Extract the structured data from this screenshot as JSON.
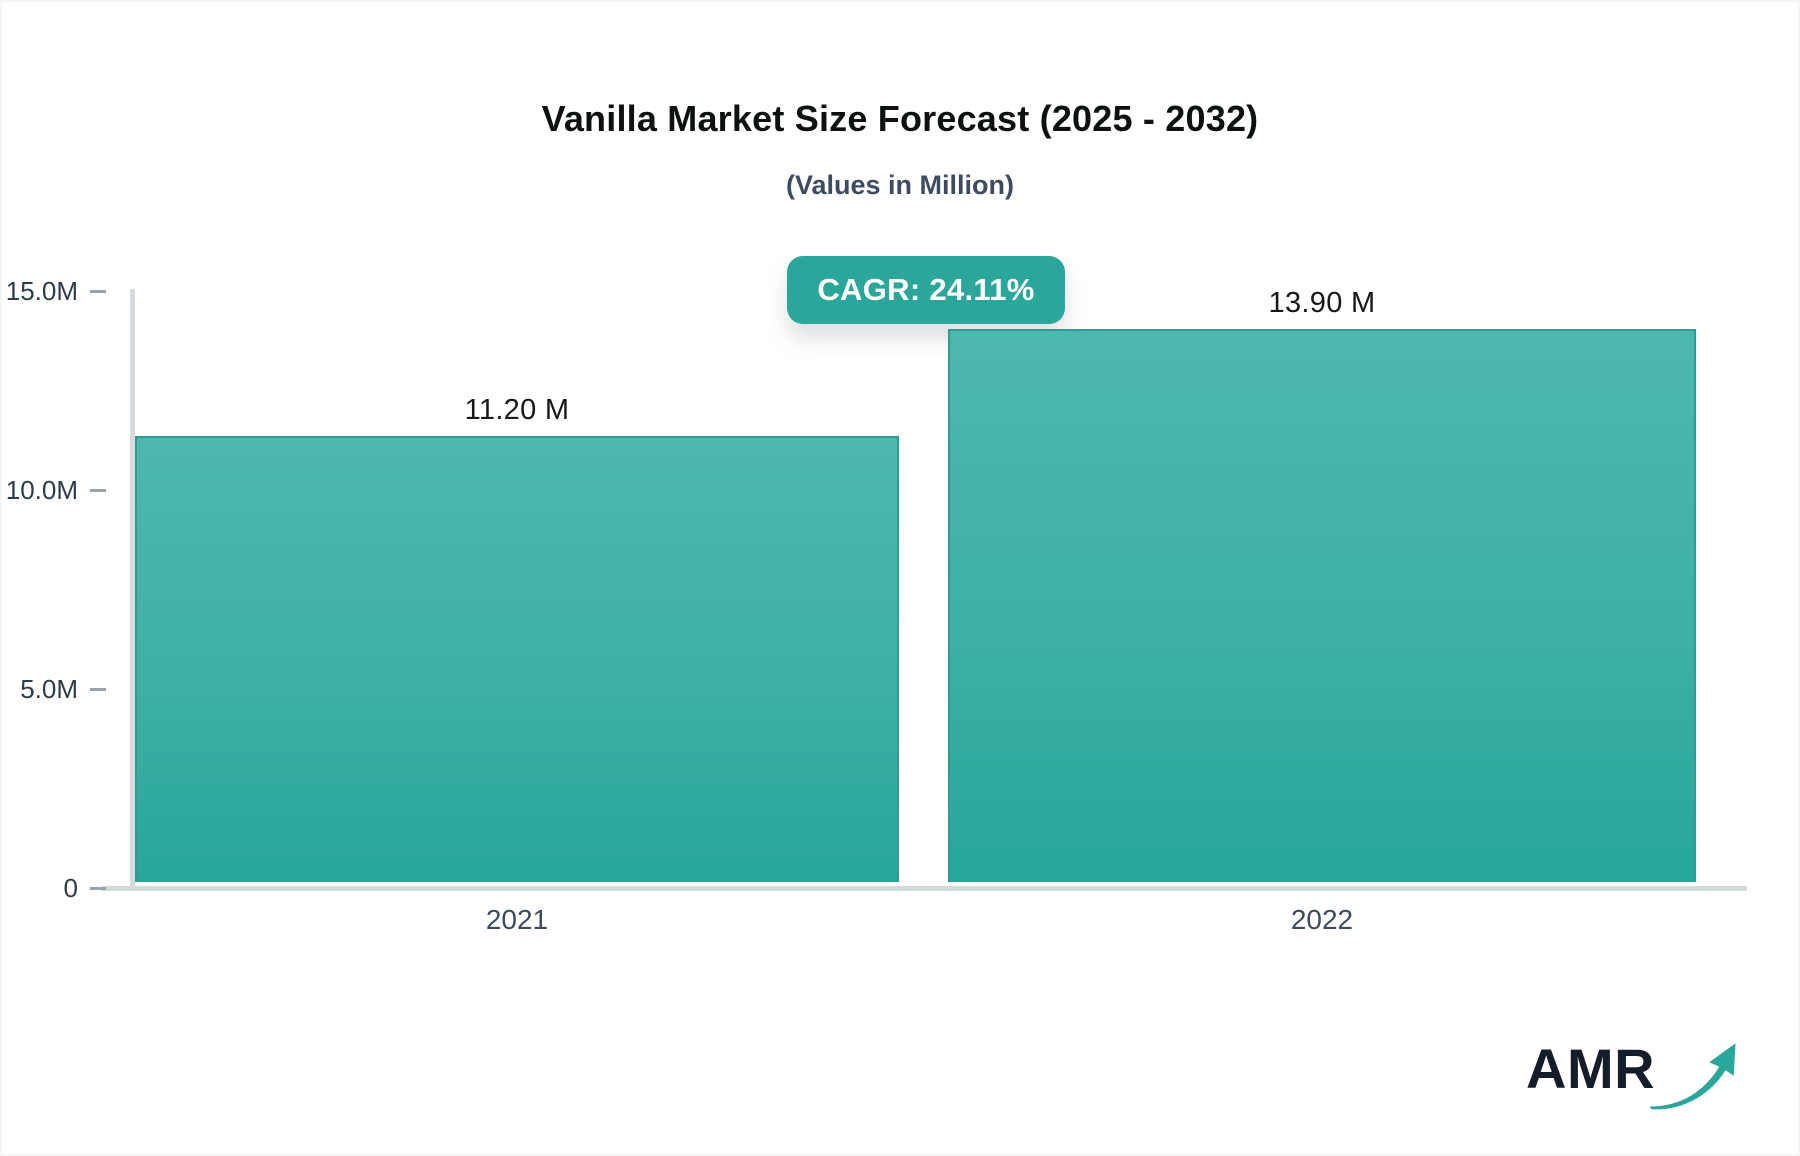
{
  "chart_data": {
    "type": "bar",
    "title": "Vanilla Market Size Forecast (2025 - 2032)",
    "subtitle": "(Values in Million)",
    "cagr_annotation": "CAGR: 24.11%",
    "categories": [
      "2021",
      "2022"
    ],
    "values": [
      11.2,
      13.9
    ],
    "value_labels": [
      "11.20 M",
      "13.90 M"
    ],
    "ylim": [
      0,
      15
    ],
    "yticks": [
      {
        "value": 0,
        "label": "0"
      },
      {
        "value": 5,
        "label": "5.0M"
      },
      {
        "value": 10,
        "label": "10.0M"
      },
      {
        "value": 15,
        "label": "15.0M"
      }
    ],
    "grid": false,
    "legend": false,
    "colors": {
      "bar_top": "#4FB8AE",
      "bar_bottom": "#28A69A",
      "bar_border": "#2E9C92",
      "accent": "#2BA69B",
      "axis": "#D4D9DC",
      "tick_text": "#2E3B4A"
    }
  },
  "branding": {
    "logo_text": "AMR",
    "logo_arrow_icon": "trend-up-arrow"
  }
}
